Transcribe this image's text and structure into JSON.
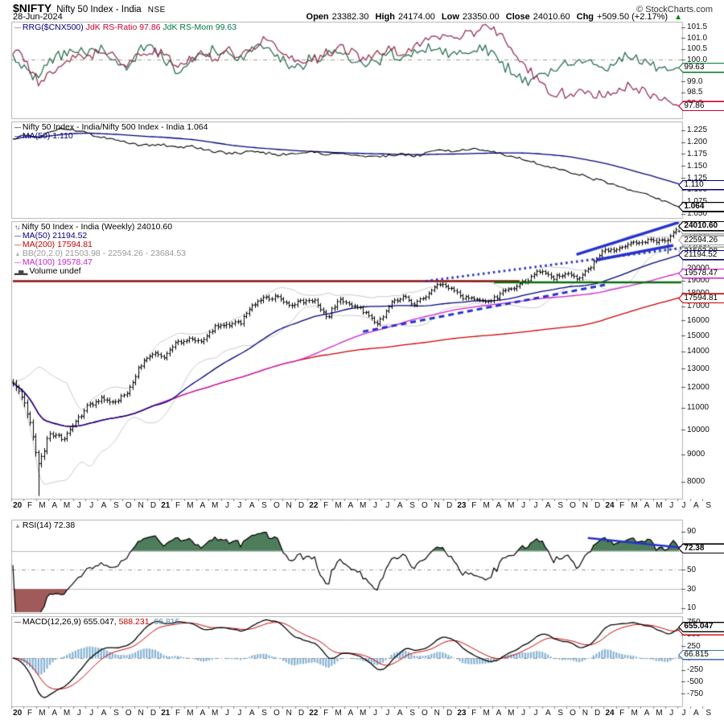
{
  "header": {
    "symbol": "$NIFTY",
    "name": "Nifty 50 Index - India",
    "exchange": "NSE",
    "date": "28-Jun-2024",
    "copyright": "© StockCharts.com",
    "quote": {
      "open_label": "Open",
      "open": "23382.30",
      "high_label": "High",
      "high": "24174.00",
      "low_label": "Low",
      "low": "23350.00",
      "close_label": "Close",
      "close": "24010.60",
      "chg_label": "Chg",
      "chg": "+509.50 (+2.17%)",
      "arrow": "▲"
    }
  },
  "colors": {
    "rs_ratio": "#9a3352",
    "rs_mom": "#2a7050",
    "navy": "#000080",
    "red": "#cc0000",
    "magenta": "#cc22cc",
    "gray_band": "#c9c9c9",
    "annotation_blue": "#2633cc",
    "hline_red": "#8b1111",
    "hline_green": "#0b6b0b",
    "hist_fill": "#85b2d3",
    "rsi_fill_high": "#4d7d5a",
    "rsi_fill_low": "#a05a5a",
    "up_arrow_green": "#008800"
  },
  "xaxis": {
    "labels": [
      "20",
      "F",
      "M",
      "A",
      "M",
      "J",
      "J",
      "A",
      "S",
      "O",
      "N",
      "D",
      "21",
      "F",
      "M",
      "A",
      "M",
      "J",
      "J",
      "A",
      "S",
      "O",
      "N",
      "D",
      "22",
      "F",
      "M",
      "A",
      "M",
      "J",
      "J",
      "A",
      "S",
      "O",
      "N",
      "D",
      "23",
      "F",
      "M",
      "A",
      "M",
      "J",
      "J",
      "A",
      "S",
      "O",
      "N",
      "D",
      "24",
      "F",
      "M",
      "A",
      "M",
      "J",
      "J",
      "A",
      "S"
    ]
  },
  "panels": {
    "rrg": {
      "legend_lines": [
        [
          {
            "text": "—",
            "color": "#9a3352",
            "name": "rs-ratio-line-icon"
          },
          {
            "text": " RRG($CNX500)",
            "color": "#000080"
          },
          {
            "text": " JdK RS-Ratio 97.86",
            "color": "#cc0033"
          },
          {
            "text": " JdK RS-Mom 99.63",
            "color": "#007744"
          }
        ]
      ],
      "ticks": [
        {
          "v": 101.5,
          "label": "101.5"
        },
        {
          "v": 101.0,
          "label": "101.0"
        },
        {
          "v": 100.5,
          "label": "100.5"
        },
        {
          "v": 100.0,
          "label": "100.0"
        },
        {
          "v": 99.5,
          "label": "99.5"
        },
        {
          "v": 99.0,
          "label": "99.0"
        },
        {
          "v": 98.5,
          "label": "98.5"
        },
        {
          "v": 98.0,
          "label": "98.0"
        }
      ],
      "grids": [
        {
          "v": 100.0,
          "style": "dashdot"
        }
      ],
      "badges": [
        {
          "v": 99.63,
          "label": "99.63",
          "border": "#228844"
        },
        {
          "v": 97.86,
          "label": "97.86",
          "border": "#cc0033"
        }
      ]
    },
    "ratio": {
      "legend_lines": [
        [
          {
            "text": "—",
            "color": "#000000",
            "name": "ratio-line-icon"
          },
          {
            "text": " Nifty 50 Index - India/Nifty 500 Index - India 1.064",
            "color": "#000000"
          }
        ],
        [
          {
            "text": "—",
            "color": "#000080",
            "name": "ma50-line-icon"
          },
          {
            "text": " MA(50) 1.110",
            "color": "#000080"
          }
        ]
      ],
      "ticks": [
        {
          "v": 1.225,
          "label": "1.225"
        },
        {
          "v": 1.2,
          "label": "1.200"
        },
        {
          "v": 1.175,
          "label": "1.175"
        },
        {
          "v": 1.15,
          "label": "1.150"
        },
        {
          "v": 1.125,
          "label": "1.125"
        },
        {
          "v": 1.1,
          "label": "1.100"
        },
        {
          "v": 1.075,
          "label": "1.075"
        },
        {
          "v": 1.05,
          "label": "1.050"
        }
      ],
      "grids": [],
      "badges": [
        {
          "v": 1.11,
          "label": "1.110",
          "border": "#000080"
        },
        {
          "v": 1.064,
          "label": "1.064",
          "border": "#000000",
          "bold": true
        }
      ]
    },
    "price": {
      "legend_lines": [
        [
          {
            "text": "↑↓",
            "color": "#000000",
            "name": "ohlc-icon"
          },
          {
            "text": " Nifty 50 Index - India (Weekly) 24010.60",
            "color": "#000000"
          }
        ],
        [
          {
            "text": "—",
            "color": "#000080",
            "name": "ma50-line-icon"
          },
          {
            "text": " MA(50) 21194.52",
            "color": "#000080"
          }
        ],
        [
          {
            "text": "—",
            "color": "#cc0000",
            "name": "ma200-line-icon"
          },
          {
            "text": " MA(200) 17594.81",
            "color": "#cc0000"
          }
        ],
        [
          {
            "text": "▲",
            "color": "#bbbbbb",
            "name": "bb-icon"
          },
          {
            "text": " BB(20,2.0) 21503.98 - 22594.26 - 23684.53",
            "color": "#999999"
          }
        ],
        [
          {
            "text": "—",
            "color": "#cc22cc",
            "name": "ma100-line-icon"
          },
          {
            "text": " MA(100) 19578.47",
            "color": "#cc22cc"
          }
        ],
        [
          {
            "text": "▂▅▂",
            "color": "#444444",
            "name": "volume-icon"
          },
          {
            "text": " Volume undef",
            "color": "#000000"
          }
        ]
      ],
      "ticks": [
        {
          "v": 24000,
          "label": "24000"
        },
        {
          "v": 23000,
          "label": "23000"
        },
        {
          "v": 22000,
          "label": "22000"
        },
        {
          "v": 21000,
          "label": "21000"
        },
        {
          "v": 20000,
          "label": "20000"
        },
        {
          "v": 19000,
          "label": "19000"
        },
        {
          "v": 18000,
          "label": "18000"
        },
        {
          "v": 17000,
          "label": "17000"
        },
        {
          "v": 16000,
          "label": "16000"
        },
        {
          "v": 15000,
          "label": "15000"
        },
        {
          "v": 14000,
          "label": "14000"
        },
        {
          "v": 13000,
          "label": "13000"
        },
        {
          "v": 12000,
          "label": "12000"
        },
        {
          "v": 11000,
          "label": "11000"
        },
        {
          "v": 10000,
          "label": "10000"
        },
        {
          "v": 9000,
          "label": "9000"
        },
        {
          "v": 8000,
          "label": "8000"
        }
      ],
      "grids": [],
      "badges": [
        {
          "v": 23684.53,
          "label": "23684.53",
          "border": "#aaaaaa"
        },
        {
          "v": 21503.98,
          "label": "21503.98",
          "border": "#aaaaaa"
        },
        {
          "v": 22594.26,
          "label": "22594.26",
          "border": "#aaaaaa"
        },
        {
          "v": 21194.52,
          "label": "21194.52",
          "border": "#000080"
        },
        {
          "v": 19578.47,
          "label": "19578.47",
          "border": "#cc22cc"
        },
        {
          "v": 17594.81,
          "label": "17594.81",
          "border": "#cc0000"
        },
        {
          "v": 24010.6,
          "label": "24010.60",
          "border": "#000000",
          "bold": true
        }
      ],
      "annotations": [
        {
          "name": "resistance-line-red",
          "type": "segment",
          "w0": 0,
          "v0": 18950,
          "w1": 178,
          "v1": 18950,
          "color": "#8b1111",
          "width": 2.5
        },
        {
          "name": "support-line-green",
          "type": "segment",
          "w0": 169,
          "v0": 18850,
          "w1": 237,
          "v1": 18850,
          "color": "#0b6b0b",
          "width": 2.5
        },
        {
          "name": "dashed-support-trendline",
          "type": "segment",
          "w0": 123,
          "v0": 15250,
          "w1": 208,
          "v1": 18650,
          "color": "#2633cc",
          "width": 3,
          "dash": [
            7,
            5
          ]
        },
        {
          "name": "dotted-resistance-trendline",
          "type": "segment",
          "w0": 145,
          "v0": 18950,
          "w1": 237,
          "v1": 21850,
          "color": "#2633cc",
          "width": 3,
          "dash": [
            2.5,
            4
          ]
        },
        {
          "name": "channel-upper-trendline",
          "type": "segment",
          "w0": 198,
          "v0": 21250,
          "w1": 234,
          "v1": 24400,
          "color": "#2633cc",
          "width": 3.5
        },
        {
          "name": "channel-lower-trendline",
          "type": "segment",
          "w0": 205,
          "v0": 20750,
          "w1": 232,
          "v1": 22100,
          "color": "#2633cc",
          "width": 3.5
        }
      ]
    },
    "rsi": {
      "legend_lines": [
        [
          {
            "text": "▲",
            "color": "#8a9a8a",
            "name": "rsi-icon"
          },
          {
            "text": " RSI(14) 72.38",
            "color": "#000000"
          }
        ]
      ],
      "ticks": [
        {
          "v": 90,
          "label": "90"
        },
        {
          "v": 70,
          "label": "70"
        },
        {
          "v": 50,
          "label": "50"
        },
        {
          "v": 30,
          "label": "30"
        },
        {
          "v": 10,
          "label": "10"
        }
      ],
      "grids": [
        {
          "v": 70,
          "style": "solid"
        },
        {
          "v": 50,
          "style": "dashdot"
        },
        {
          "v": 30,
          "style": "solid"
        }
      ],
      "badges": [
        {
          "v": 72.38,
          "label": "72.38",
          "border": "#000000",
          "bold": true
        }
      ],
      "annotations": [
        {
          "name": "rsi-trendline",
          "type": "segment",
          "w0": 202,
          "v0": 83.5,
          "w1": 242,
          "v1": 73.3,
          "color": "#2633cc",
          "width": 2.5
        }
      ]
    },
    "macd": {
      "legend_lines": [
        [
          {
            "text": "—",
            "color": "#000000",
            "name": "macd-line-icon"
          },
          {
            "text": " MACD(12,26,9) 655.047, ",
            "color": "#000000"
          },
          {
            "text": "588.231, ",
            "color": "#cc0000"
          },
          {
            "text": "66.815",
            "color": "#5588aa"
          }
        ]
      ],
      "ticks": [
        {
          "v": 750,
          "label": "750"
        },
        {
          "v": 500,
          "label": "500"
        },
        {
          "v": 250,
          "label": "250"
        },
        {
          "v": 0,
          "label": "0"
        },
        {
          "v": -250,
          "label": "-250"
        },
        {
          "v": -500,
          "label": "-500"
        },
        {
          "v": -750,
          "label": "-750"
        }
      ],
      "grids": [
        {
          "v": 0,
          "style": "dashdot"
        }
      ],
      "badges": [
        {
          "v": 588.231,
          "label": "588.231",
          "border": "#cc0000"
        },
        {
          "v": 655.047,
          "label": "655.047",
          "border": "#000000",
          "bold": true
        },
        {
          "v": 66.815,
          "label": "66.815",
          "border": "#4477aa"
        }
      ]
    }
  },
  "chart_data": [
    {
      "id": "rrg",
      "type": "line",
      "title": "RRG($CNX500) JdK RS-Ratio / JdK RS-Mom",
      "ylim": [
        97.3,
        101.76
      ],
      "legend_position": "top-left",
      "categories": [
        "2020-01",
        "2020-02",
        "2020-03",
        "2020-04",
        "2020-05",
        "2020-06",
        "2020-07",
        "2020-08",
        "2020-09",
        "2020-10",
        "2020-11",
        "2020-12",
        "2021-01",
        "2021-02",
        "2021-03",
        "2021-04",
        "2021-05",
        "2021-06",
        "2021-07",
        "2021-08",
        "2021-09",
        "2021-10",
        "2021-11",
        "2021-12",
        "2022-01",
        "2022-02",
        "2022-03",
        "2022-04",
        "2022-05",
        "2022-06",
        "2022-07",
        "2022-08",
        "2022-09",
        "2022-10",
        "2022-11",
        "2022-12",
        "2023-01",
        "2023-02",
        "2023-03",
        "2023-04",
        "2023-05",
        "2023-06",
        "2023-07",
        "2023-08",
        "2023-09",
        "2023-10",
        "2023-11",
        "2023-12",
        "2024-01",
        "2024-02",
        "2024-03",
        "2024-04",
        "2024-05",
        "2024-06"
      ],
      "series": [
        {
          "name": "JdK RS-Ratio",
          "color": "#9a3352",
          "last": 97.86,
          "values": [
            100.4,
            100.0,
            99.0,
            99.3,
            99.8,
            100.2,
            100.0,
            100.4,
            100.2,
            99.7,
            100.2,
            100.5,
            100.2,
            99.6,
            100.0,
            100.3,
            100.0,
            100.4,
            100.2,
            100.5,
            100.9,
            100.6,
            100.1,
            99.8,
            100.0,
            100.3,
            100.6,
            100.3,
            100.0,
            100.2,
            100.5,
            100.3,
            100.6,
            100.9,
            101.1,
            101.0,
            101.2,
            101.4,
            101.5,
            101.0,
            100.3,
            99.6,
            98.9,
            98.5,
            98.4,
            98.6,
            98.4,
            98.3,
            98.5,
            98.8,
            98.6,
            98.3,
            98.1,
            97.86
          ]
        },
        {
          "name": "JdK RS-Mom",
          "color": "#2a7050",
          "last": 99.63,
          "values": [
            100.1,
            99.6,
            99.2,
            100.0,
            100.3,
            100.5,
            100.2,
            100.6,
            100.0,
            99.6,
            100.4,
            100.6,
            100.0,
            99.5,
            99.8,
            100.2,
            100.4,
            100.3,
            100.0,
            100.5,
            100.7,
            100.2,
            99.6,
            99.8,
            100.1,
            100.3,
            100.4,
            100.0,
            99.8,
            100.0,
            100.3,
            100.1,
            100.4,
            100.6,
            100.5,
            100.2,
            100.4,
            100.6,
            100.3,
            99.8,
            99.3,
            99.0,
            99.2,
            99.5,
            99.8,
            100.0,
            99.8,
            99.6,
            99.9,
            100.2,
            100.0,
            99.7,
            99.5,
            99.63
          ]
        }
      ]
    },
    {
      "id": "ratio",
      "type": "line",
      "title": "Nifty 50 Index - India/Nifty 500 Index - India",
      "ylim": [
        1.041,
        1.243
      ],
      "series": [
        {
          "name": "ratio",
          "color": "#000000",
          "last": 1.064,
          "values": [
            1.205,
            1.215,
            1.21,
            1.222,
            1.228,
            1.225,
            1.218,
            1.21,
            1.205,
            1.2,
            1.195,
            1.192,
            1.195,
            1.188,
            1.192,
            1.185,
            1.18,
            1.178,
            1.175,
            1.182,
            1.178,
            1.172,
            1.175,
            1.178,
            1.18,
            1.175,
            1.178,
            1.172,
            1.17,
            1.168,
            1.172,
            1.175,
            1.17,
            1.178,
            1.182,
            1.18,
            1.183,
            1.185,
            1.18,
            1.175,
            1.168,
            1.16,
            1.152,
            1.145,
            1.14,
            1.132,
            1.125,
            1.118,
            1.11,
            1.1,
            1.092,
            1.085,
            1.075,
            1.064
          ]
        },
        {
          "name": "MA(50)",
          "color": "#000080",
          "derived": "sma50",
          "last": 1.11
        }
      ]
    },
    {
      "id": "price",
      "type": "ohlc-bar",
      "title": "Nifty 50 Index - India (Weekly)",
      "scale": "log",
      "ylim": [
        7430,
        24520
      ],
      "last_bar": {
        "open": 23382.3,
        "high": 24174.0,
        "low": 23350.0,
        "close": 24010.6
      },
      "series": [
        {
          "name": "close",
          "color": "#000000",
          "values": [
            12256,
            11202,
            8598,
            9860,
            9580,
            10302,
            11073,
            11388,
            11247,
            11642,
            12969,
            13982,
            13635,
            14529,
            14691,
            14631,
            15583,
            15722,
            15763,
            17132,
            17618,
            17672,
            16983,
            17354,
            17340,
            16245,
            17465,
            17103,
            16585,
            15780,
            17158,
            17759,
            17094,
            18012,
            18758,
            18105,
            17662,
            17466,
            17360,
            18065,
            18534,
            19189,
            19754,
            19254,
            19638,
            19080,
            20268,
            21731,
            21726,
            22339,
            22327,
            22605,
            22531,
            24010.6
          ]
        }
      ],
      "overlays": [
        {
          "name": "MA(50)",
          "color": "#000080",
          "derived": "sma50",
          "last": 21194.52
        },
        {
          "name": "MA(100)",
          "color": "#cc22cc",
          "derived": "sma100",
          "last": 19578.47
        },
        {
          "name": "MA(200)",
          "color": "#cc0000",
          "derived": "sma200",
          "last": 17594.81
        },
        {
          "name": "BB(20,2.0)",
          "color": "#c9c9c9",
          "derived": "bb20",
          "last": [
            21503.98,
            22594.26,
            23684.53
          ]
        }
      ],
      "volume": "undef"
    },
    {
      "id": "rsi",
      "type": "line",
      "title": "RSI(14)",
      "ylim": [
        4.9,
        102.6
      ],
      "derived_from": "price.close",
      "last": 72.38,
      "overbought": 70,
      "oversold": 30
    },
    {
      "id": "macd",
      "type": "line+histogram",
      "title": "MACD(12,26,9)",
      "ylim": [
        -1020,
        884
      ],
      "derived_from": "price.close",
      "last": [
        655.047,
        588.231,
        66.815
      ]
    }
  ]
}
